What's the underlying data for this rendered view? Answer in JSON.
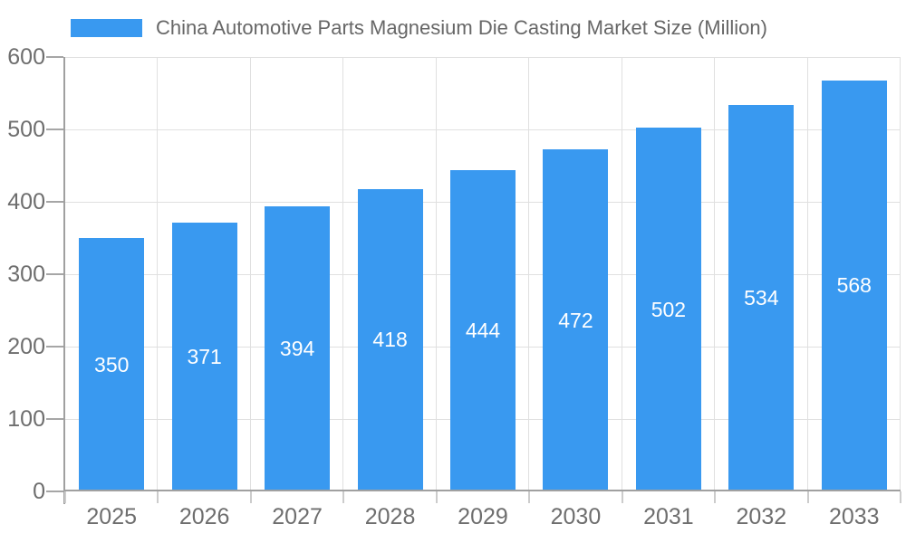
{
  "chart_data": {
    "type": "bar",
    "title": "China Automotive Parts Magnesium Die Casting Market Size (Million)",
    "legend": [
      "China Automotive Parts Magnesium Die Casting Market Size (Million)"
    ],
    "legend_position": "top-left",
    "categories": [
      "2025",
      "2026",
      "2027",
      "2028",
      "2029",
      "2030",
      "2031",
      "2032",
      "2033"
    ],
    "values": [
      350,
      371,
      394,
      418,
      444,
      472,
      502,
      534,
      568
    ],
    "xlabel": "",
    "ylabel": "",
    "ylim": [
      0,
      600
    ],
    "yticks": [
      0,
      100,
      200,
      300,
      400,
      500,
      600
    ],
    "grid": true,
    "bar_color": "#3999F0",
    "value_label_color": "#ffffff",
    "axis_text_color": "#6e6e6e",
    "axis_line_color": "#a0a0a0",
    "gridline_color": "#e0e0e0",
    "background_color": "#ffffff"
  }
}
